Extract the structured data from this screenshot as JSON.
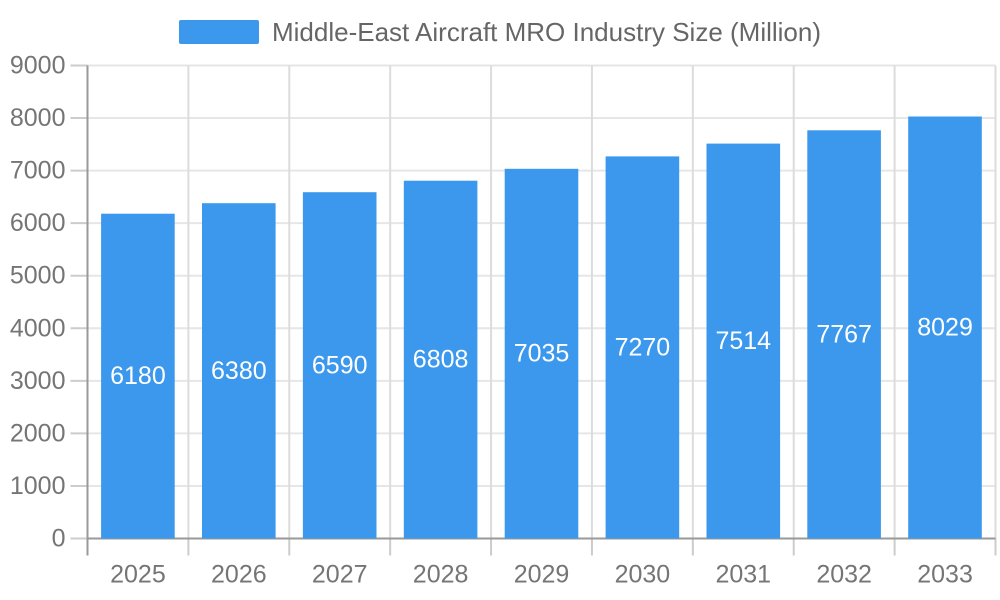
{
  "legend": {
    "label": "Middle-East Aircraft MRO Industry Size (Million)"
  },
  "chart_data": {
    "type": "bar",
    "title": "Middle-East Aircraft MRO Industry Size (Million)",
    "categories": [
      "2025",
      "2026",
      "2027",
      "2028",
      "2029",
      "2030",
      "2031",
      "2032",
      "2033"
    ],
    "values": [
      6180,
      6380,
      6590,
      6808,
      7035,
      7270,
      7514,
      7767,
      8029
    ],
    "xlabel": "",
    "ylabel": "",
    "ylim": [
      0,
      9000
    ],
    "ytick_step": 1000,
    "grid": true,
    "bar_labels_visible": true,
    "legend_position": "top-center",
    "colors": {
      "bar": "#3B98ED",
      "bar_label": "#ffffff",
      "axis_line": "#999999",
      "tick": "#cccccc",
      "h_gridline": "#e6e6e6",
      "v_gridline": "#dcdcdc",
      "axis_text": "#757575",
      "legend_text": "#666666",
      "background": "#ffffff"
    }
  }
}
